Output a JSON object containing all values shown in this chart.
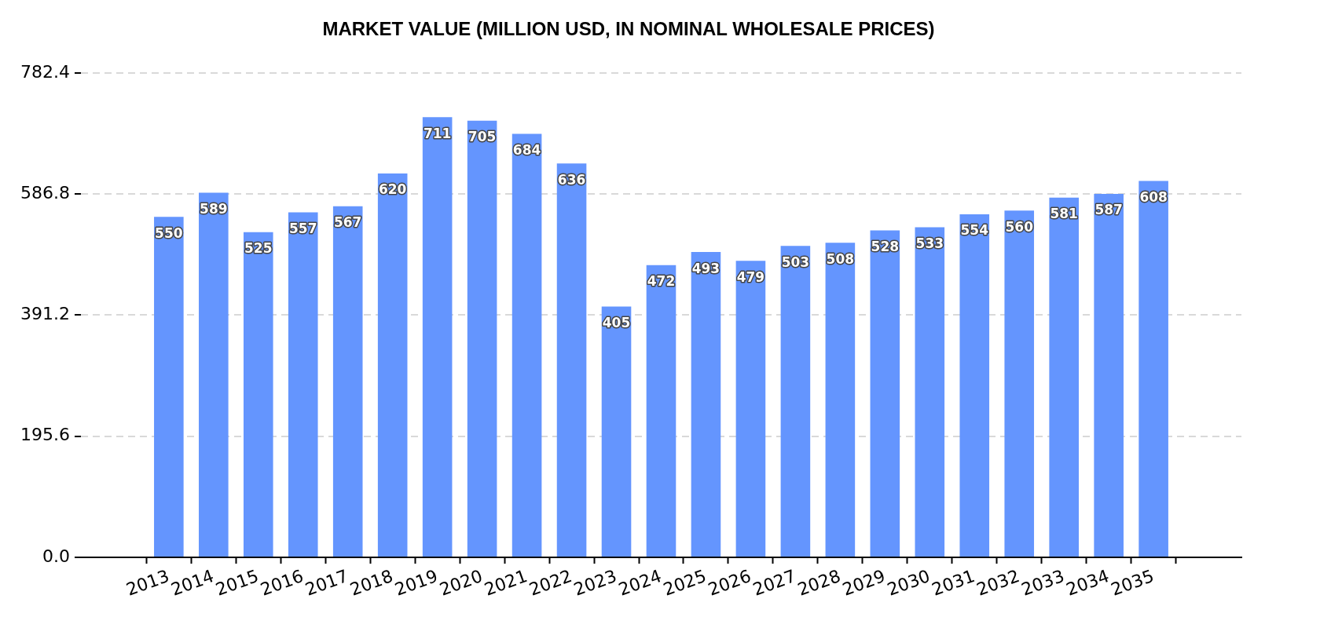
{
  "chart_data": {
    "type": "bar",
    "title": "MARKET VALUE (MILLION USD, IN NOMINAL WHOLESALE PRICES)",
    "categories": [
      "2013",
      "2014",
      "2015",
      "2016",
      "2017",
      "2018",
      "2019",
      "2020",
      "2021",
      "2022",
      "2023",
      "2024",
      "2025",
      "2026",
      "2027",
      "2028",
      "2029",
      "2030",
      "2031",
      "2032",
      "2033",
      "2034",
      "2035"
    ],
    "values": [
      550,
      589,
      525,
      557,
      567,
      620,
      711,
      705,
      684,
      636,
      405,
      472,
      493,
      479,
      503,
      508,
      528,
      533,
      554,
      560,
      581,
      587,
      608
    ],
    "color": "#6495fe",
    "ylim": [
      0,
      782.4
    ],
    "yticks": [
      {
        "value": 0,
        "label": "0.0"
      },
      195.6,
      391.2,
      586.8,
      782.4
    ],
    "grid": "y",
    "data_labels": true
  }
}
